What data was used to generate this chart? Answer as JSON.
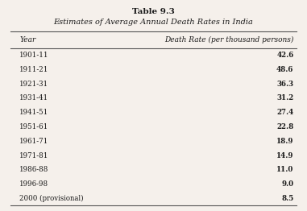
{
  "title_bold": "Table 9.3",
  "title_italic": "Estimates of Average Annual Death Rates in India",
  "col1_header": "Year",
  "col2_header": "Death Rate (per thousand persons)",
  "rows": [
    [
      "1901-11",
      "42.6"
    ],
    [
      "1911-21",
      "48.6"
    ],
    [
      "1921-31",
      "36.3"
    ],
    [
      "1931-41",
      "31.2"
    ],
    [
      "1941-51",
      "27.4"
    ],
    [
      "1951-61",
      "22.8"
    ],
    [
      "1961-71",
      "18.9"
    ],
    [
      "1971-81",
      "14.9"
    ],
    [
      "1986-88",
      "11.0"
    ],
    [
      "1996-98",
      "9.0"
    ],
    [
      "2000 (provisional)",
      "8.5"
    ]
  ],
  "bg_color": "#f5f0eb",
  "text_color": "#1a1a1a",
  "line_color": "#555555"
}
